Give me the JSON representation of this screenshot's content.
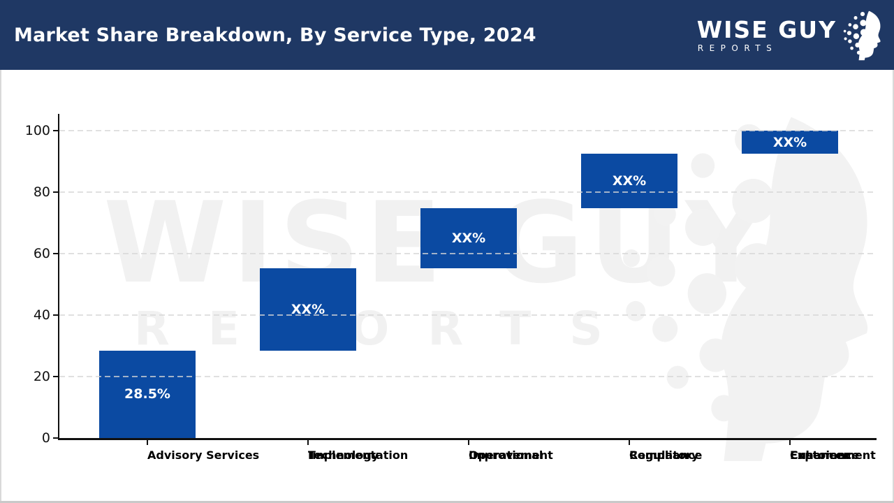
{
  "header": {
    "logo": {
      "brand": "WISE GUY",
      "sub": "REPORTS"
    }
  },
  "watermark": {
    "brand": "WISE GUY",
    "sub": "REPORTS"
  },
  "chart_data": {
    "type": "bar",
    "subtype": "stepped-waterfall",
    "title": "Market Share Breakdown, By Service Type, 2024",
    "categories": [
      "Advisory Services",
      "Technology Implementation",
      "Operational Improvement",
      "Regulatory Compliance",
      "Customer Experience Enhancement"
    ],
    "category_label_lines": [
      [
        "Advisory Services"
      ],
      [
        "Technology",
        "Implementation"
      ],
      [
        "Operational",
        "Improvement"
      ],
      [
        "Regulatory",
        "Compliance"
      ],
      [
        "Customer",
        "Experience",
        "Enhancement"
      ]
    ],
    "segments": [
      {
        "start": 0,
        "end": 28.5,
        "label": "28.5%"
      },
      {
        "start": 28.5,
        "end": 55.2,
        "label": "XX%"
      },
      {
        "start": 55.2,
        "end": 74.8,
        "label": "XX%"
      },
      {
        "start": 74.8,
        "end": 92.5,
        "label": "XX%"
      },
      {
        "start": 92.5,
        "end": 100,
        "label": "XX%"
      }
    ],
    "y_ticks": [
      0,
      20,
      40,
      60,
      80,
      100
    ],
    "ylim": [
      0,
      105.5
    ],
    "xlabel": "",
    "ylabel": "",
    "legend": "none",
    "grid": {
      "axis": "y",
      "style": "dashed",
      "color": "#dcdcdc"
    },
    "bar_color": "#0b4aa2",
    "bar_label_color": "#ffffff",
    "axis_color": "#111111",
    "header_bg": "#1f3864",
    "watermark_color": "#f1f1f1"
  }
}
